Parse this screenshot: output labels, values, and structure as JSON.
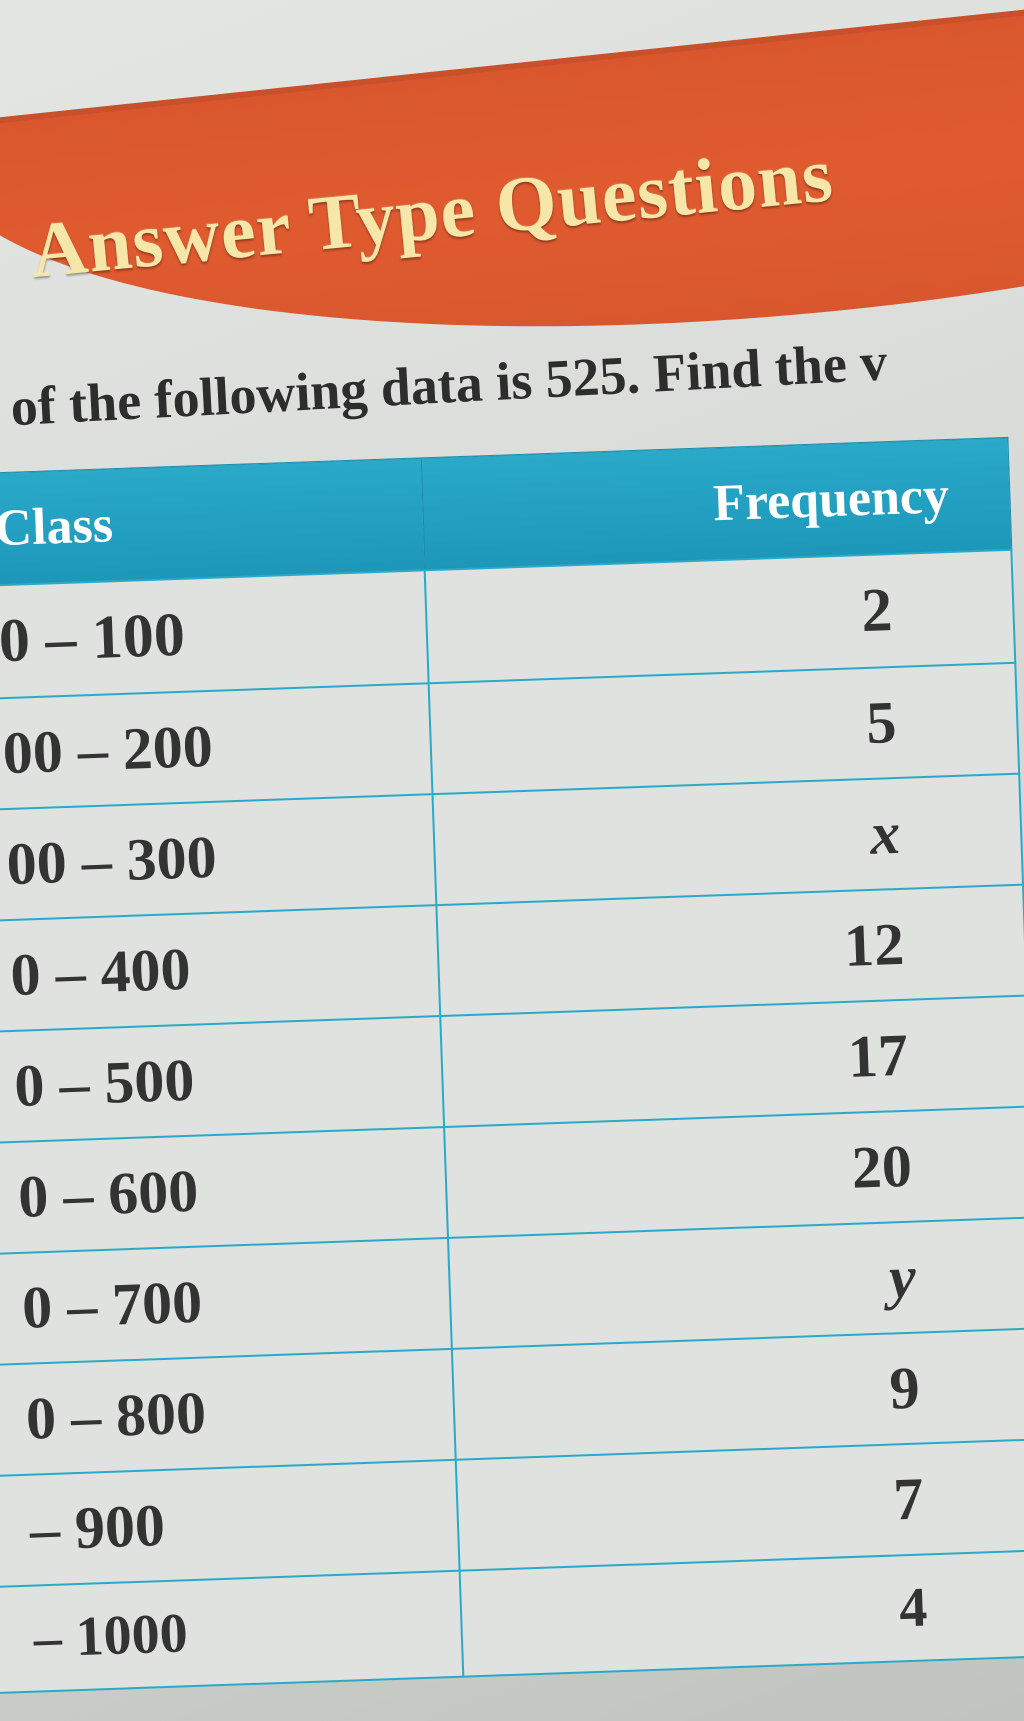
{
  "banner": {
    "text": "Answer Type Questions",
    "bg_gradient": [
      "#d9572e",
      "#e05a2f",
      "#d9572e"
    ],
    "text_color": "#f6e7a8",
    "font_size_pt": 58
  },
  "question_stem": {
    "visible_text": "of the following data is 525. Find the v",
    "font_size_pt": 40,
    "color": "#2d2d2d"
  },
  "table": {
    "type": "table",
    "header_bg": "#2aa9c9",
    "header_text_color": "#ffffff",
    "border_color": "#2aa9c9",
    "cell_bg": "#dfe2de",
    "cell_text_color": "#333333",
    "header_font_size_pt": 38,
    "cell_font_size_pt": 44,
    "columns": [
      "Class",
      "Frequency"
    ],
    "rows": [
      {
        "class": "0 – 100",
        "frequency": "2"
      },
      {
        "class": "00 – 200",
        "frequency": "5"
      },
      {
        "class": "00 – 300",
        "frequency": "x"
      },
      {
        "class": "0 – 400",
        "frequency": "12"
      },
      {
        "class": "0 – 500",
        "frequency": "17"
      },
      {
        "class": "0 – 600",
        "frequency": "20"
      },
      {
        "class": "0 – 700",
        "frequency": "y"
      },
      {
        "class": "0 – 800",
        "frequency": "9"
      },
      {
        "class": "– 900",
        "frequency": "7"
      },
      {
        "class": "– 1000",
        "frequency": "4"
      }
    ],
    "variable_cells": [
      "x",
      "y"
    ]
  },
  "page_bg_gradient": [
    "#e4e6e3",
    "#d4d7d3",
    "#c0c4bf"
  ]
}
